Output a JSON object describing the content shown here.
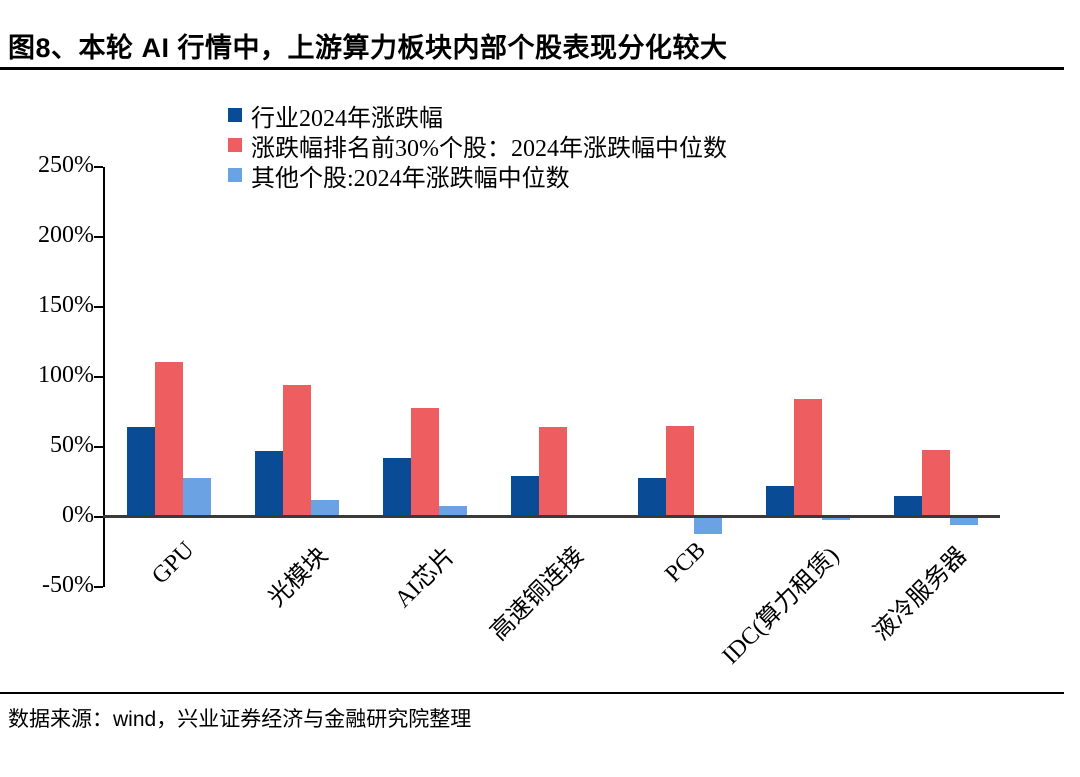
{
  "title": "图8、本轮 AI 行情中，上游算力板块内部个股表现分化较大",
  "footer": {
    "source": "数据来源：wind，兴业证券经济与金融研究院整理"
  },
  "colors": {
    "industry_blue": "#0A4B96",
    "top30_red": "#EE5D60",
    "others_light_blue": "#6BA2E4",
    "axis_black": "#000000",
    "baseline_gray": "#3a3a3a"
  },
  "legend": [
    {
      "label": "行业2024年涨跌幅",
      "color": "#0A4B96"
    },
    {
      "label": "涨跌幅排名前30%个股：2024年涨跌幅中位数",
      "color": "#EE5D60"
    },
    {
      "label": "其他个股:2024年涨跌幅中位数",
      "color": "#6BA2E4"
    }
  ],
  "chart_data": {
    "type": "bar",
    "title": "图8、本轮 AI 行情中，上游算力板块内部个股表现分化较大",
    "categories": [
      "GPU",
      "光模块",
      "AI芯片",
      "高速铜连接",
      "PCB",
      "IDC(算力租赁)",
      "液冷服务器"
    ],
    "series": [
      {
        "name": "行业2024年涨跌幅",
        "color": "#0A4B96",
        "values": [
          64,
          47,
          42,
          29,
          28,
          22,
          15
        ]
      },
      {
        "name": "涨跌幅排名前30%个股：2024年涨跌幅中位数",
        "color": "#EE5D60",
        "values": [
          111,
          94,
          78,
          64,
          65,
          84,
          48
        ]
      },
      {
        "name": "其他个股:2024年涨跌幅中位数",
        "color": "#6BA2E4",
        "values": [
          28,
          12,
          8,
          1,
          -12,
          -2,
          -6
        ]
      }
    ],
    "xlabel": "",
    "ylabel": "",
    "ylim": [
      -50,
      250
    ],
    "yticks": [
      250,
      200,
      150,
      100,
      50,
      0,
      -50
    ],
    "ytick_labels": [
      "250%",
      "200%",
      "150%",
      "100%",
      "50%",
      "0%",
      "-50%"
    ],
    "grid": false,
    "legend_position": "top-center",
    "unit": "percent"
  }
}
